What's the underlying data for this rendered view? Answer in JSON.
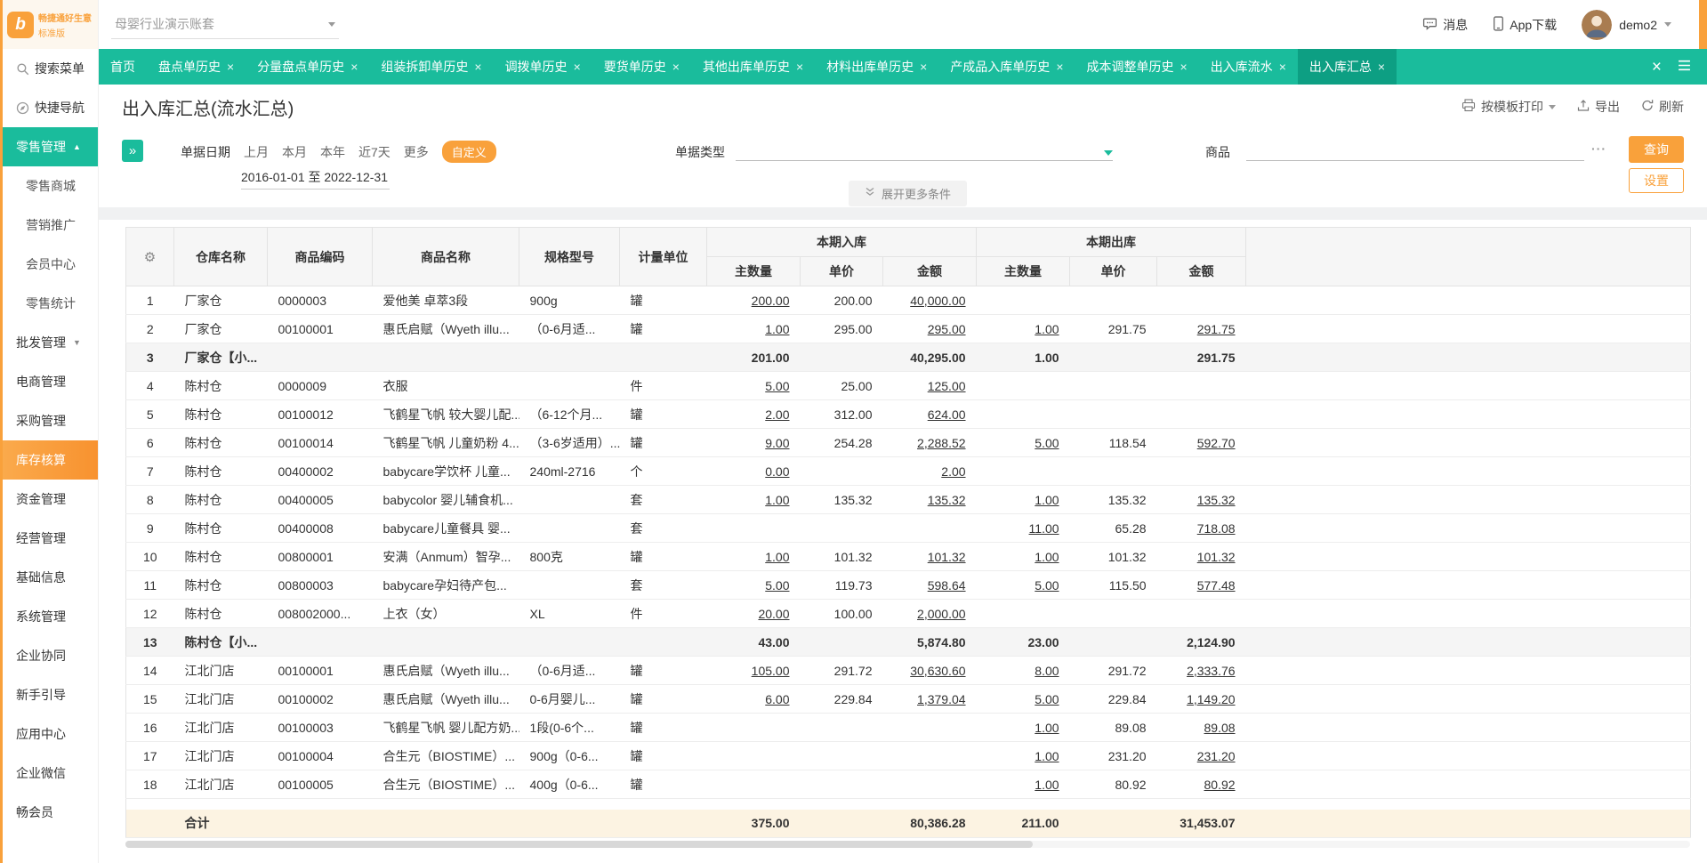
{
  "colors": {
    "teal": "#1ABC9C",
    "teal_dark": "#0D9F83",
    "orange": "#F9A13B",
    "total_row_bg": "#FCF3E2"
  },
  "logo": {
    "mark": "b",
    "brand": "畅捷通好生意",
    "edition": "标准版"
  },
  "topbar": {
    "account": "母婴行业演示账套",
    "messages": "消息",
    "app_download": "App下载",
    "user": "demo2"
  },
  "tabbar": {
    "tabs": [
      {
        "label": "首页",
        "closable": false,
        "active": false
      },
      {
        "label": "盘点单历史",
        "closable": true,
        "active": false
      },
      {
        "label": "分量盘点单历史",
        "closable": true,
        "active": false
      },
      {
        "label": "组装拆卸单历史",
        "closable": true,
        "active": false
      },
      {
        "label": "调拨单历史",
        "closable": true,
        "active": false
      },
      {
        "label": "要货单历史",
        "closable": true,
        "active": false
      },
      {
        "label": "其他出库单历史",
        "closable": true,
        "active": false
      },
      {
        "label": "材料出库单历史",
        "closable": true,
        "active": false
      },
      {
        "label": "产成品入库单历史",
        "closable": true,
        "active": false
      },
      {
        "label": "成本调整单历史",
        "closable": true,
        "active": false
      },
      {
        "label": "出入库流水",
        "closable": true,
        "active": false
      },
      {
        "label": "出入库汇总",
        "closable": true,
        "active": true
      }
    ]
  },
  "sidebar": {
    "items": [
      {
        "id": "search-menu",
        "label": "搜索菜单",
        "icon": "search"
      },
      {
        "id": "quick-nav",
        "label": "快捷导航",
        "icon": "compass"
      },
      {
        "id": "retail-management",
        "label": "零售管理",
        "style": "teal",
        "arrow": "up"
      },
      {
        "id": "retail-mall",
        "label": "零售商城",
        "style": "sub"
      },
      {
        "id": "marketing-promotion",
        "label": "营销推广",
        "style": "sub"
      },
      {
        "id": "member-center",
        "label": "会员中心",
        "style": "sub"
      },
      {
        "id": "retail-statistics",
        "label": "零售统计",
        "style": "sub"
      },
      {
        "id": "wholesale-management",
        "label": "批发管理",
        "arrow": "down"
      },
      {
        "id": "ecommerce-management",
        "label": "电商管理"
      },
      {
        "id": "purchase-management",
        "label": "采购管理"
      },
      {
        "id": "inventory-accounting",
        "label": "库存核算",
        "style": "orange"
      },
      {
        "id": "funds-management",
        "label": "资金管理"
      },
      {
        "id": "operations-management",
        "label": "经营管理"
      },
      {
        "id": "basic-info",
        "label": "基础信息"
      },
      {
        "id": "system-management",
        "label": "系统管理"
      },
      {
        "id": "enterprise-collaboration",
        "label": "企业协同"
      },
      {
        "id": "beginner-guide",
        "label": "新手引导"
      },
      {
        "id": "app-center",
        "label": "应用中心"
      },
      {
        "id": "enterprise-wechat",
        "label": "企业微信"
      },
      {
        "id": "chang-member",
        "label": "畅会员"
      }
    ]
  },
  "page": {
    "title": "出入库汇总(流水汇总)",
    "actions": [
      "按模板打印",
      "导出",
      "刷新"
    ]
  },
  "filters": {
    "date_label": "单据日期",
    "quick_options": [
      "上月",
      "本月",
      "本年",
      "近7天",
      "更多"
    ],
    "custom_badge": "自定义",
    "date_range": "2016-01-01 至 2022-12-31",
    "doc_type_label": "单据类型",
    "product_label": "商品",
    "search_button": "查询",
    "settings_button": "设置",
    "expand_more": "展开更多条件"
  },
  "table": {
    "columns": [
      "仓库名称",
      "商品编码",
      "商品名称",
      "规格型号",
      "计量单位"
    ],
    "group_headers": {
      "inbound": "本期入库",
      "outbound": "本期出库"
    },
    "sub_columns": [
      "主数量",
      "单价",
      "金额"
    ],
    "rows": [
      {
        "no": "1",
        "warehouse": "厂家仓",
        "code": "0000003",
        "name": "爱他美 卓萃3段",
        "spec": "900g",
        "unit": "罐",
        "in_qty": "200.00",
        "in_price": "200.00",
        "in_amount": "40,000.00",
        "out_qty": "",
        "out_price": "",
        "out_amount": ""
      },
      {
        "no": "2",
        "warehouse": "厂家仓",
        "code": "00100001",
        "name": "惠氏启赋（Wyeth illu...",
        "spec": "（0-6月适...",
        "unit": "罐",
        "in_qty": "1.00",
        "in_price": "295.00",
        "in_amount": "295.00",
        "out_qty": "1.00",
        "out_price": "291.75",
        "out_amount": "291.75"
      },
      {
        "no": "3",
        "type": "subtotal",
        "warehouse": "厂家仓【小...",
        "code": "",
        "name": "",
        "spec": "",
        "unit": "",
        "in_qty": "201.00",
        "in_price": "",
        "in_amount": "40,295.00",
        "out_qty": "1.00",
        "out_price": "",
        "out_amount": "291.75"
      },
      {
        "no": "4",
        "warehouse": "陈村仓",
        "code": "0000009",
        "name": "衣服",
        "spec": "",
        "unit": "件",
        "in_qty": "5.00",
        "in_price": "25.00",
        "in_amount": "125.00",
        "out_qty": "",
        "out_price": "",
        "out_amount": ""
      },
      {
        "no": "5",
        "warehouse": "陈村仓",
        "code": "00100012",
        "name": "飞鹤星飞帆 较大婴儿配...",
        "spec": "（6-12个月...",
        "unit": "罐",
        "in_qty": "2.00",
        "in_price": "312.00",
        "in_amount": "624.00",
        "out_qty": "",
        "out_price": "",
        "out_amount": ""
      },
      {
        "no": "6",
        "warehouse": "陈村仓",
        "code": "00100014",
        "name": "飞鹤星飞帆 儿童奶粉 4...",
        "spec": "（3-6岁适用）...",
        "unit": "罐",
        "in_qty": "9.00",
        "in_price": "254.28",
        "in_amount": "2,288.52",
        "out_qty": "5.00",
        "out_price": "118.54",
        "out_amount": "592.70"
      },
      {
        "no": "7",
        "warehouse": "陈村仓",
        "code": "00400002",
        "name": "babycare学饮杯 儿童...",
        "spec": "240ml-2716",
        "unit": "个",
        "in_qty": "0.00",
        "in_price": "",
        "in_amount": "2.00",
        "out_qty": "",
        "out_price": "",
        "out_amount": ""
      },
      {
        "no": "8",
        "warehouse": "陈村仓",
        "code": "00400005",
        "name": "babycolor 婴儿辅食机...",
        "spec": "",
        "unit": "套",
        "in_qty": "1.00",
        "in_price": "135.32",
        "in_amount": "135.32",
        "out_qty": "1.00",
        "out_price": "135.32",
        "out_amount": "135.32"
      },
      {
        "no": "9",
        "warehouse": "陈村仓",
        "code": "00400008",
        "name": "babycare儿童餐具 婴...",
        "spec": "",
        "unit": "套",
        "in_qty": "",
        "in_price": "",
        "in_amount": "",
        "out_qty": "11.00",
        "out_price": "65.28",
        "out_amount": "718.08"
      },
      {
        "no": "10",
        "warehouse": "陈村仓",
        "code": "00800001",
        "name": "安满（Anmum）智孕...",
        "spec": "800克",
        "unit": "罐",
        "in_qty": "1.00",
        "in_price": "101.32",
        "in_amount": "101.32",
        "out_qty": "1.00",
        "out_price": "101.32",
        "out_amount": "101.32"
      },
      {
        "no": "11",
        "warehouse": "陈村仓",
        "code": "00800003",
        "name": "babycare孕妇待产包...",
        "spec": "",
        "unit": "套",
        "in_qty": "5.00",
        "in_price": "119.73",
        "in_amount": "598.64",
        "out_qty": "5.00",
        "out_price": "115.50",
        "out_amount": "577.48"
      },
      {
        "no": "12",
        "warehouse": "陈村仓",
        "code": "008002000...",
        "name": "上衣（女）",
        "spec": "XL",
        "unit": "件",
        "in_qty": "20.00",
        "in_price": "100.00",
        "in_amount": "2,000.00",
        "out_qty": "",
        "out_price": "",
        "out_amount": ""
      },
      {
        "no": "13",
        "type": "subtotal",
        "warehouse": "陈村仓【小...",
        "code": "",
        "name": "",
        "spec": "",
        "unit": "",
        "in_qty": "43.00",
        "in_price": "",
        "in_amount": "5,874.80",
        "out_qty": "23.00",
        "out_price": "",
        "out_amount": "2,124.90"
      },
      {
        "no": "14",
        "warehouse": "江北门店",
        "code": "00100001",
        "name": "惠氏启赋（Wyeth illu...",
        "spec": "（0-6月适...",
        "unit": "罐",
        "in_qty": "105.00",
        "in_price": "291.72",
        "in_amount": "30,630.60",
        "out_qty": "8.00",
        "out_price": "291.72",
        "out_amount": "2,333.76"
      },
      {
        "no": "15",
        "warehouse": "江北门店",
        "code": "00100002",
        "name": "惠氏启赋（Wyeth illu...",
        "spec": "0-6月婴儿...",
        "unit": "罐",
        "in_qty": "6.00",
        "in_price": "229.84",
        "in_amount": "1,379.04",
        "out_qty": "5.00",
        "out_price": "229.84",
        "out_amount": "1,149.20"
      },
      {
        "no": "16",
        "warehouse": "江北门店",
        "code": "00100003",
        "name": "飞鹤星飞帆 婴儿配方奶...",
        "spec": "1段(0-6个...",
        "unit": "罐",
        "in_qty": "",
        "in_price": "",
        "in_amount": "",
        "out_qty": "1.00",
        "out_price": "89.08",
        "out_amount": "89.08"
      },
      {
        "no": "17",
        "warehouse": "江北门店",
        "code": "00100004",
        "name": "合生元（BIOSTIME）...",
        "spec": "900g（0-6...",
        "unit": "罐",
        "in_qty": "",
        "in_price": "",
        "in_amount": "",
        "out_qty": "1.00",
        "out_price": "231.20",
        "out_amount": "231.20"
      },
      {
        "no": "18",
        "warehouse": "江北门店",
        "code": "00100005",
        "name": "合生元（BIOSTIME）...",
        "spec": "400g（0-6...",
        "unit": "罐",
        "in_qty": "",
        "in_price": "",
        "in_amount": "",
        "out_qty": "1.00",
        "out_price": "80.92",
        "out_amount": "80.92"
      }
    ],
    "total": {
      "label": "合计",
      "in_qty": "375.00",
      "in_amount": "80,386.28",
      "out_qty": "211.00",
      "out_amount": "31,453.07"
    }
  }
}
